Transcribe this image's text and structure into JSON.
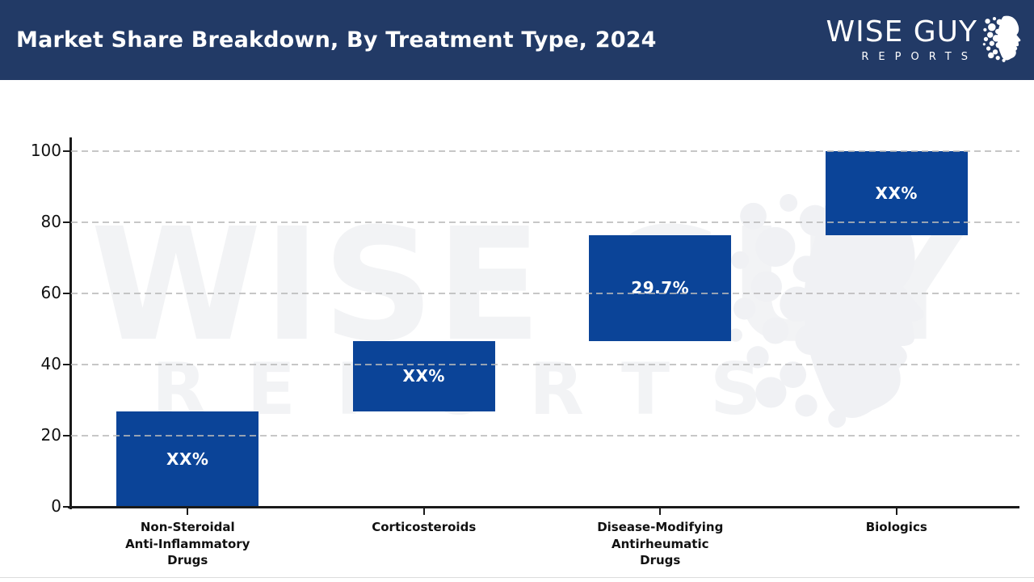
{
  "header": {
    "title": "Market Share Breakdown, By Treatment Type, 2024",
    "logo": {
      "line1": "WISE GUY",
      "line2": "REPORTS"
    }
  },
  "watermark": {
    "line1": "WISE GUY",
    "line2": "REPORTS"
  },
  "colors": {
    "header_bg": "#223A66",
    "bar": "#0B4498",
    "grid_on_white": "#D9D9D9",
    "axis": "#1A1A1A",
    "bar_label": "#FFFFFF",
    "watermark": "#F2F3F5"
  },
  "chart_data": {
    "type": "bar",
    "subtype": "waterfall",
    "title": "Market Share Breakdown, By Treatment Type, 2024",
    "categories": [
      [
        "Non-Steroidal",
        "Anti-Inflammatory",
        "Drugs"
      ],
      [
        "Corticosteroids"
      ],
      [
        "Disease-Modifying",
        "Antirheumatic",
        "Drugs"
      ],
      [
        "Biologics"
      ]
    ],
    "bars": [
      {
        "category": "Non-Steroidal Anti-Inflammatory Drugs",
        "start": 0,
        "end": 26.8,
        "value": 26.8,
        "label": "XX%"
      },
      {
        "category": "Corticosteroids",
        "start": 26.8,
        "end": 46.7,
        "value": 19.9,
        "label": "XX%"
      },
      {
        "category": "Disease-Modifying Antirheumatic Drugs",
        "start": 46.7,
        "end": 76.4,
        "value": 29.7,
        "label": "29.7%"
      },
      {
        "category": "Biologics",
        "start": 76.4,
        "end": 100,
        "value": 23.6,
        "label": "XX%"
      }
    ],
    "xlabel": "",
    "ylabel": "",
    "ylim": [
      0,
      100
    ],
    "yticks": [
      0,
      20,
      40,
      60,
      80,
      100
    ],
    "grid": "horizontal-dashed",
    "legend": "none"
  }
}
